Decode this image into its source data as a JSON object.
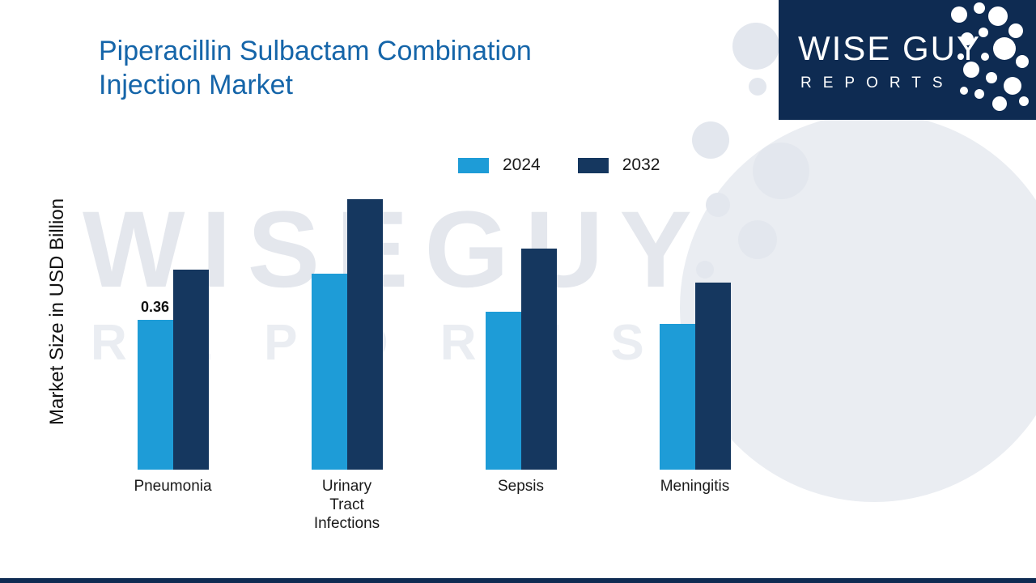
{
  "page": {
    "title_display": "Piperacillin Sulbactam Combination\nInjection Market",
    "ylabel": "Market Size in USD Billion"
  },
  "logo": {
    "brand": "WISE GUY",
    "sub": "REPORTS"
  },
  "watermark": {
    "line1": "WISEGUY",
    "line2": "REPORTS"
  },
  "colors": {
    "series_2024": "#1e9cd7",
    "series_2032": "#15375f",
    "title_blue": "#1565a9",
    "logo_navy": "#0e2b52"
  },
  "chart_data": {
    "type": "bar",
    "title": "Piperacillin Sulbactam Combination Injection Market",
    "xlabel": "",
    "ylabel": "Market Size in USD Billion",
    "categories": [
      "Pneumonia",
      "Urinary Tract Infections",
      "Sepsis",
      "Meningitis"
    ],
    "category_display": [
      "Pneumonia",
      "Urinary\nTract\nInfections",
      "Sepsis",
      "Meningitis"
    ],
    "series": [
      {
        "name": "2024",
        "color": "#1e9cd7",
        "values": [
          0.36,
          0.47,
          0.38,
          0.35
        ]
      },
      {
        "name": "2032",
        "color": "#15375f",
        "values": [
          0.48,
          0.65,
          0.53,
          0.45
        ]
      }
    ],
    "shown_labels": [
      {
        "series_index": 0,
        "category_index": 0,
        "text": "0.36"
      }
    ],
    "ylim": [
      0,
      0.7
    ],
    "grid": false,
    "legend_position": "top-center"
  }
}
